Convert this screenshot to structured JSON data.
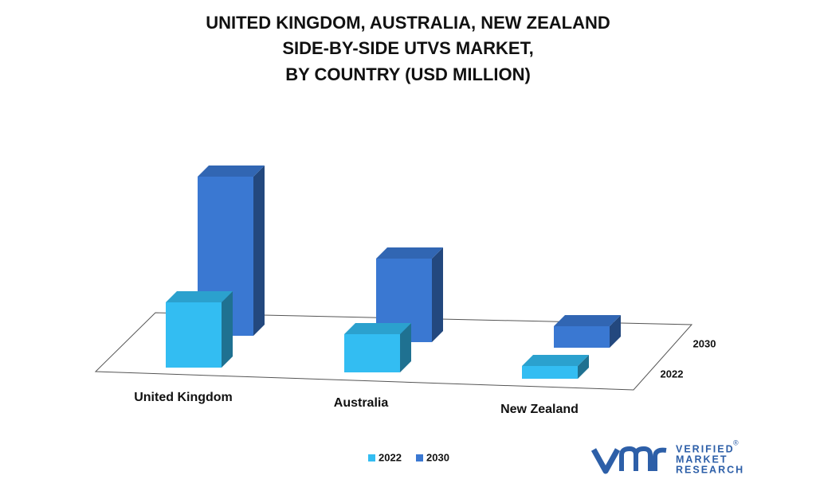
{
  "chart_data": {
    "type": "bar3d",
    "title": [
      "UNITED KINGDOM, AUSTRALIA, NEW ZEALAND",
      "SIDE-BY-SIDE UTVS MARKET,",
      "BY COUNTRY (USD MILLION)"
    ],
    "categories": [
      "United Kingdom",
      "Australia",
      "New Zealand"
    ],
    "series": [
      {
        "name": "2022",
        "color": "#33bdf2",
        "values": [
          82,
          48,
          16
        ]
      },
      {
        "name": "2030",
        "color": "#3a78d2",
        "values": [
          200,
          105,
          27
        ]
      }
    ],
    "legend": "bottom"
  },
  "logo": {
    "line1": "VERIFIED",
    "line2": "MARKET",
    "line3": "RESEARCH",
    "mark": "®"
  }
}
